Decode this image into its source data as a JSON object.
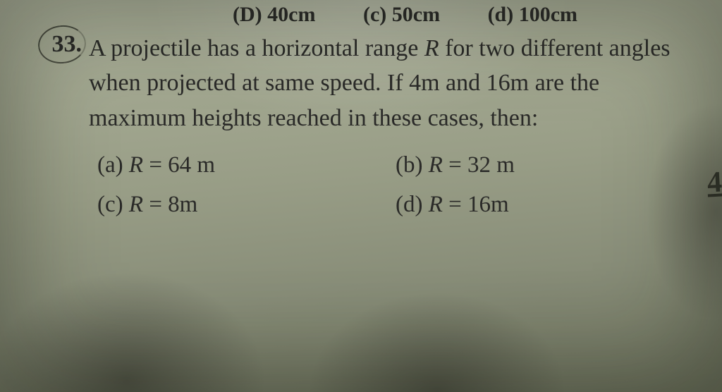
{
  "prev_question_options": {
    "b_partial": "(D) 40cm",
    "c": "(c) 50cm",
    "d": "(d) 100cm"
  },
  "question": {
    "number": "33.",
    "text_parts": {
      "p1": "A projectile has a horizontal range ",
      "R": "R",
      "p2": " for two different angles when projected at same speed. If 4m and 16m are the maximum heights reached in these cases, then:"
    }
  },
  "options": {
    "a": {
      "label": "(a) ",
      "var": "R",
      "val": " = 64 m"
    },
    "b": {
      "label": "(b) ",
      "var": "R",
      "val": " = 32 m"
    },
    "c": {
      "label": "(c) ",
      "var": "R",
      "val": " = 8m"
    },
    "d": {
      "label": "(d) ",
      "var": "R",
      "val": " = 16m"
    }
  },
  "margin_mark": "4"
}
